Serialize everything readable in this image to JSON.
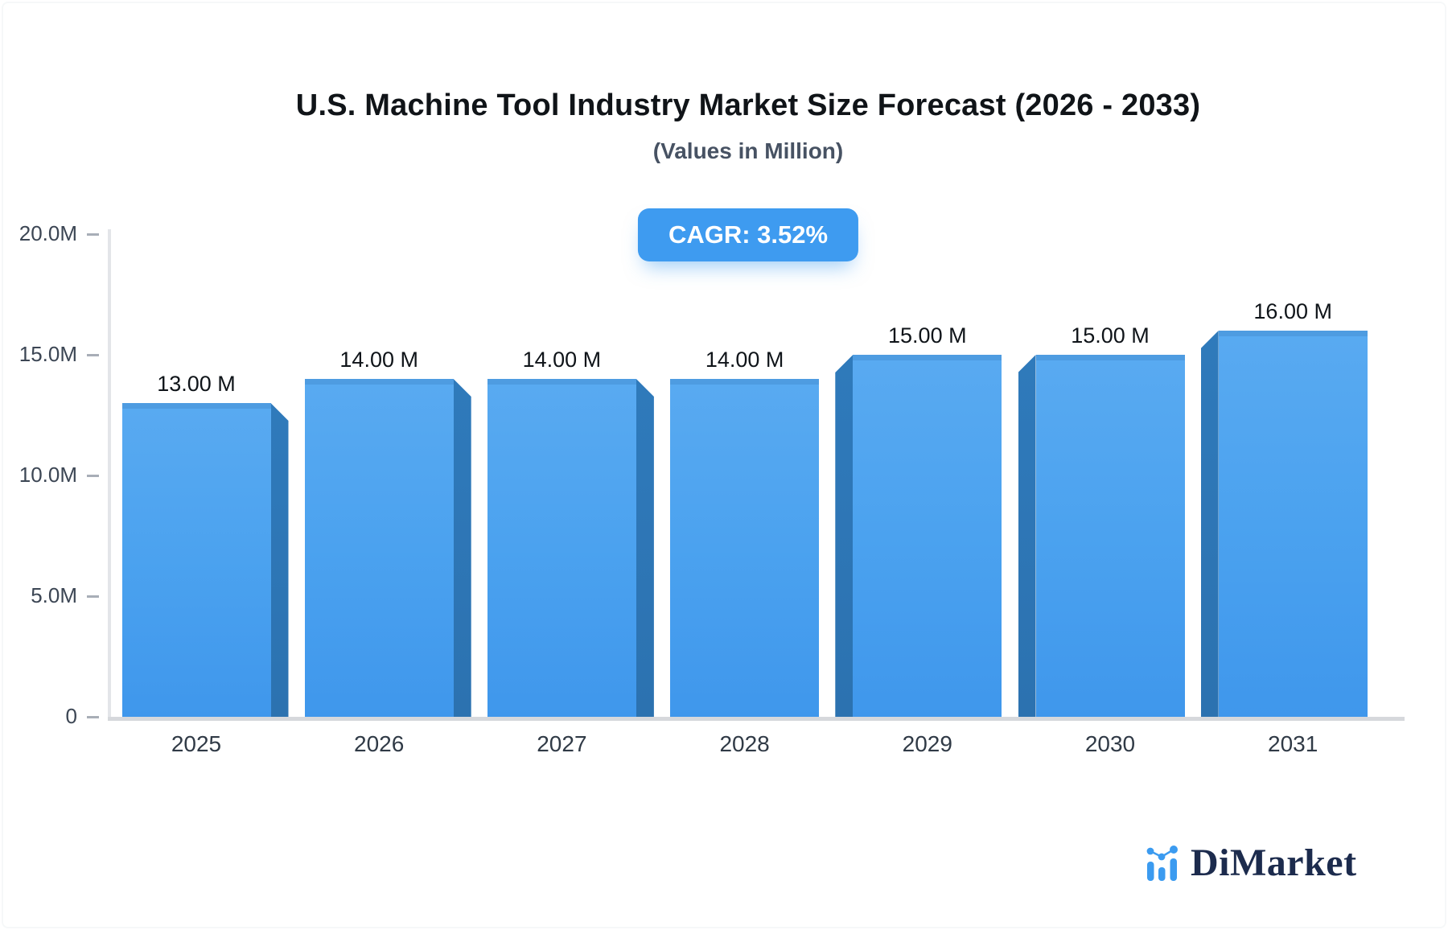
{
  "header": {
    "title": "U.S. Machine Tool Industry Market Size Forecast (2026 - 2033)",
    "subtitle": "(Values in Million)",
    "cagr_badge": "CAGR: 3.52%"
  },
  "chart_data": {
    "type": "bar",
    "title": "U.S. Machine Tool Industry Market Size Forecast (2026 - 2033)",
    "subtitle": "(Values in Million)",
    "unit": "Million",
    "annotation": "CAGR: 3.52%",
    "categories": [
      "2025",
      "2026",
      "2027",
      "2028",
      "2029",
      "2030",
      "2031"
    ],
    "values": [
      13,
      14,
      14,
      14,
      15,
      15,
      16
    ],
    "value_labels": [
      "13.00 M",
      "14.00 M",
      "14.00 M",
      "14.00 M",
      "15.00 M",
      "15.00 M",
      "16.00 M"
    ],
    "xlabel": "",
    "ylabel": "",
    "ylim": [
      0,
      20
    ],
    "y_tick_values": [
      20,
      15,
      10,
      5,
      0
    ],
    "y_tick_labels": [
      "20.0M",
      "15.0M",
      "10.0M",
      "5.0M",
      "0"
    ],
    "grid": false,
    "legend": false,
    "bar_color": "#4BA2EF",
    "bar_side_color": "#2D76B6",
    "side_3d": [
      "right",
      "right",
      "right",
      "none",
      "left",
      "left",
      "left"
    ]
  },
  "footer": {
    "logo_text": "DiMarket",
    "logo_icon": "bar-line-chart-icon",
    "logo_icon_color": "#3B9BF0",
    "logo_text_color": "#1C2B4D"
  },
  "colors": {
    "accent": "#3E9BF0",
    "axis_line": "#E3E5E9",
    "baseline": "#D6D8DC",
    "tick": "#A8AEB7",
    "title_text": "#101418",
    "subtitle_text": "#475263"
  }
}
